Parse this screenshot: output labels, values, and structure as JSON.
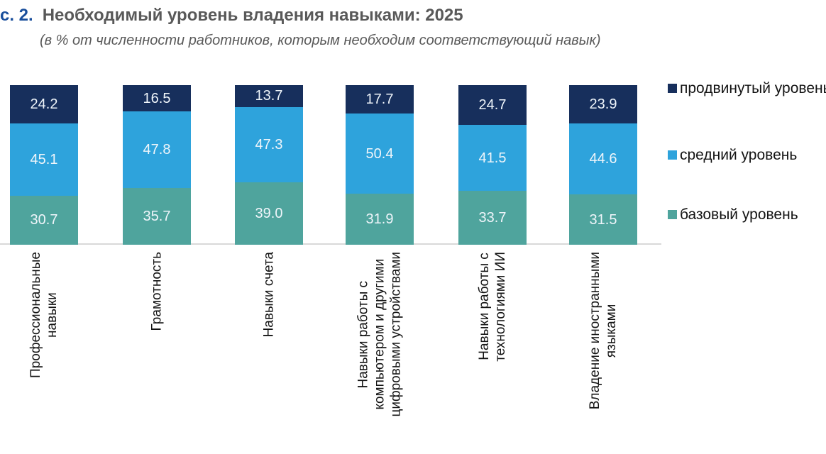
{
  "figure": {
    "title_prefix": "с. 2.",
    "title": "Необходимый уровень владения навыками: 2025",
    "subtitle": "(в % от численности работников, которым необходим соответствующий навык)"
  },
  "colors": {
    "advanced_navy": "#172F5C",
    "middle_blue": "#2EA3DC",
    "basic_teal": "#4FA49D",
    "axis_gray": "#D9D9D9",
    "title_gray": "#595959",
    "title_blue": "#1A4F9C",
    "value_label_text": "#EFF5FA",
    "label_text": "#141414"
  },
  "chart_data": {
    "type": "bar",
    "stacked": true,
    "unit": "%",
    "ylim": [
      0,
      100
    ],
    "grid": false,
    "value_labels": true,
    "legend_position": "right",
    "categories": [
      "Профессиональные\nнавыки",
      "Грамотность",
      "Навыки счета",
      "Навыки работы с\nкомпьютером и другими\nцифровыми устройствами",
      "Навыки работы с\nтехнологиями ИИ",
      "Владение иностранными\nязыками"
    ],
    "series": [
      {
        "name": "базовый уровень",
        "color": "#4FA49D",
        "values": [
          30.7,
          35.7,
          39.0,
          31.9,
          33.7,
          31.5
        ]
      },
      {
        "name": "средний уровень",
        "color": "#2EA3DC",
        "values": [
          45.1,
          47.8,
          47.3,
          50.4,
          41.5,
          44.6
        ]
      },
      {
        "name": "продвинутый уровень",
        "color": "#172F5C",
        "values": [
          24.2,
          16.5,
          13.7,
          17.7,
          24.7,
          23.9
        ]
      }
    ],
    "legend_order_top_to_bottom": [
      "продвинутый уровень",
      "средний уровень",
      "базовый уровень"
    ]
  }
}
